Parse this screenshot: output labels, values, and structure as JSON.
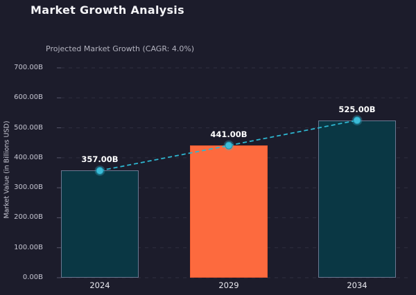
{
  "title": "Market Growth Analysis",
  "subtitle": "Projected Market Growth (CAGR: 4.0%)",
  "y_axis_label": "Market Value (in Billions USD)",
  "colors": {
    "background": "#1c1c2b",
    "title_text": "#f4f4f7",
    "subtitle_text": "#b3b3bf",
    "tick_text": "#c6c6d2",
    "grid": "#3a3a52",
    "teal_bar_fill": "#0a3744",
    "teal_bar_border": "#6b7892",
    "orange_bar_fill": "#fd6a3e",
    "orange_bar_border": "#ef5c31",
    "trend_line": "#2eb6d0",
    "marker_fill": "#3cbcd8"
  },
  "chart_data": {
    "type": "bar",
    "title": "Market Growth Analysis",
    "subtitle": "Projected Market Growth (CAGR: 4.0%)",
    "xlabel": "",
    "ylabel": "Market Value (in Billions USD)",
    "categories": [
      "2024",
      "2029",
      "2034"
    ],
    "values": [
      357,
      441,
      525
    ],
    "value_labels": [
      "357.00B",
      "441.00B",
      "525.00B"
    ],
    "bar_colors": [
      "#0a3744",
      "#fd6a3e",
      "#0a3744"
    ],
    "bar_border_colors": [
      "#6b7892",
      "#ef5c31",
      "#6b7892"
    ],
    "ylim": [
      0,
      700
    ],
    "ytick_values": [
      0,
      100,
      200,
      300,
      400,
      500,
      600,
      700
    ],
    "ytick_labels": [
      "0.00B",
      "100.00B",
      "200.00B",
      "300.00B",
      "400.00B",
      "500.00B",
      "600.00B",
      "700.00B"
    ],
    "grid": true,
    "grid_style": "dashed",
    "legend": null,
    "line_overlay": {
      "series": "trend through bar tops",
      "style": "dashed",
      "color": "#2eb6d0",
      "marker": "circle",
      "marker_color": "#3cbcd8"
    }
  }
}
